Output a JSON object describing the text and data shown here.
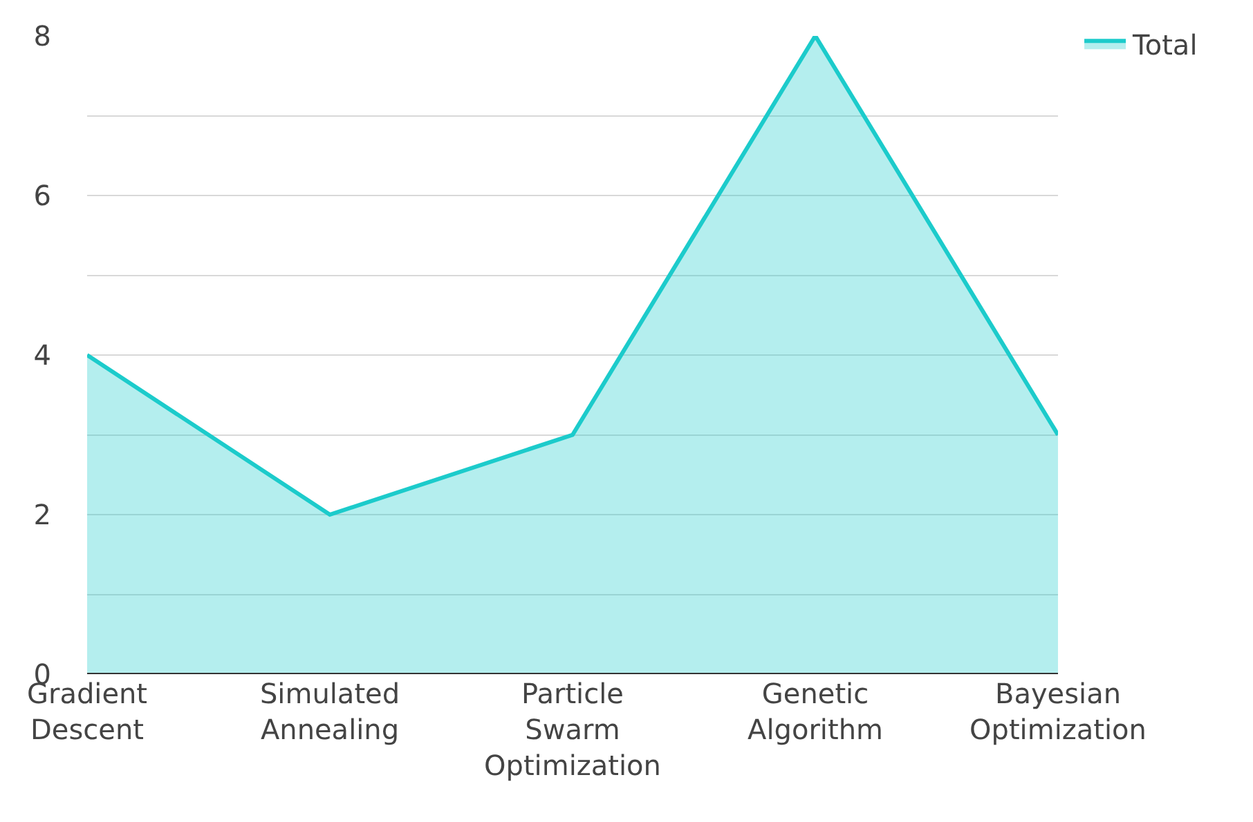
{
  "chart_data": {
    "type": "area",
    "categories": [
      "Gradient Descent",
      "Simulated Annealing",
      "Particle Swarm Optimization",
      "Genetic Algorithm",
      "Bayesian Optimization"
    ],
    "series": [
      {
        "name": "Total",
        "color": "#1ccbcb",
        "values": [
          4,
          2,
          3,
          8,
          3
        ]
      }
    ],
    "ylim": [
      0,
      8
    ],
    "yticks": [
      0,
      {
        "value": 1,
        "label": null
      },
      2,
      {
        "value": 3,
        "label": null
      },
      4,
      {
        "value": 5,
        "label": null
      },
      6,
      {
        "value": 7,
        "label": null
      },
      8
    ],
    "grid": "y",
    "legend": "top right",
    "marker": "none",
    "line_style": "solid"
  }
}
